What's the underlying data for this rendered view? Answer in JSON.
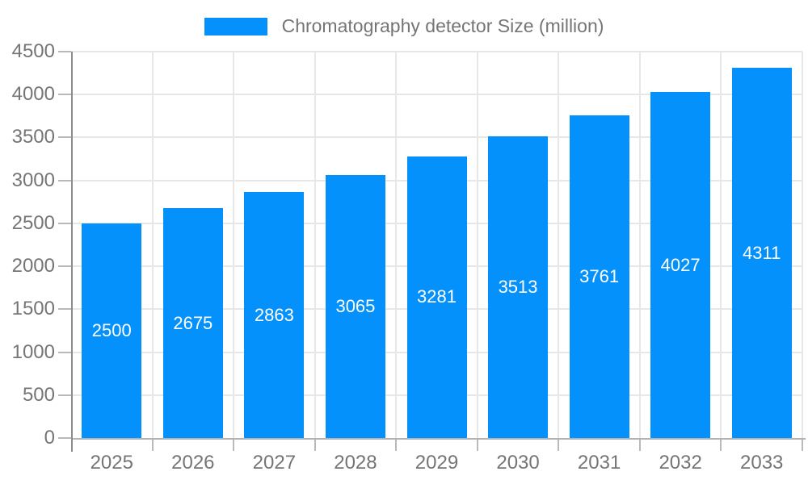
{
  "chart_data": {
    "type": "bar",
    "title": "Chromatography detector Size (million)",
    "legend": [
      "Chromatography detector Size (million)"
    ],
    "legend_position": "top-center",
    "categories": [
      "2025",
      "2026",
      "2027",
      "2028",
      "2029",
      "2030",
      "2031",
      "2032",
      "2033"
    ],
    "values": [
      2500,
      2675,
      2863,
      3065,
      3281,
      3513,
      3761,
      4027,
      4311
    ],
    "xlabel": "",
    "ylabel": "",
    "ylim": [
      0,
      4500
    ],
    "ytick_step": 500,
    "grid": true,
    "value_labels_inside_bars": true,
    "colors": {
      "bar": "#0591fb",
      "value_label": "#ffffff",
      "axis_text": "#757575",
      "gridline": "#e7e7e7",
      "tick": "#b9b9b9",
      "x_axis_line": "#b3b3b3",
      "y_axis_line": "#8c8c8c",
      "background": "#ffffff"
    }
  }
}
